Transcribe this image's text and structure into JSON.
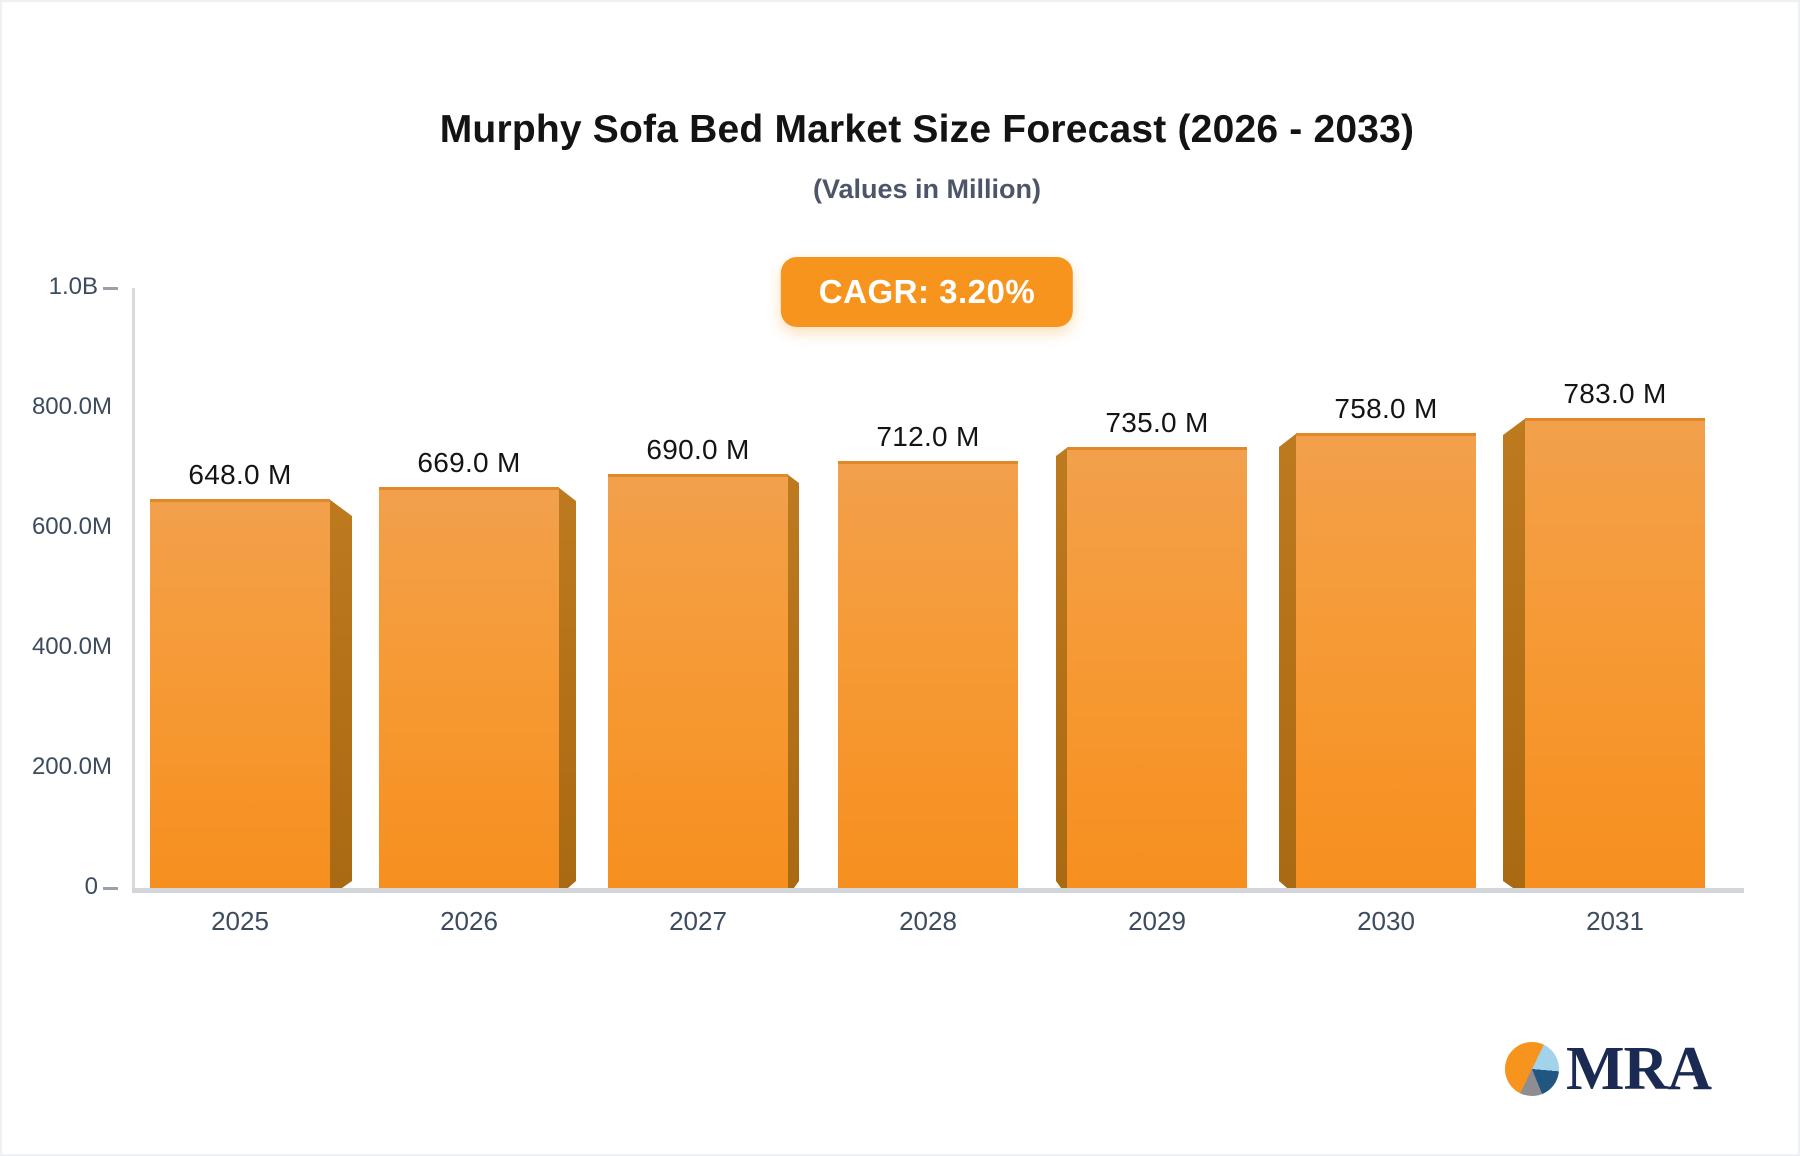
{
  "header": {
    "title": "Murphy Sofa Bed Market Size Forecast (2026 - 2033)",
    "subtitle": "(Values in Million)"
  },
  "badge": {
    "label": "CAGR: 3.20%",
    "color": "#f7941d"
  },
  "chart_data": {
    "type": "bar",
    "title": "Murphy Sofa Bed Market Size Forecast (2026 - 2033)",
    "subtitle": "(Values in Million)",
    "cagr": "3.20%",
    "categories": [
      "2025",
      "2026",
      "2027",
      "2028",
      "2029",
      "2030",
      "2031"
    ],
    "values": [
      648,
      669,
      690,
      712,
      735,
      758,
      783
    ],
    "value_labels": [
      "648.0 M",
      "669.0 M",
      "690.0 M",
      "712.0 M",
      "735.0 M",
      "758.0 M",
      "783.0 M"
    ],
    "unit": "M",
    "xlabel": "",
    "ylabel": "",
    "ylim": [
      0,
      1000
    ],
    "y_ticks": [
      {
        "label": "1.0B",
        "value": 1000,
        "dash": true
      },
      {
        "label": "800.0M",
        "value": 800,
        "dash": false
      },
      {
        "label": "600.0M",
        "value": 600,
        "dash": false
      },
      {
        "label": "400.0M",
        "value": 400,
        "dash": false
      },
      {
        "label": "200.0M",
        "value": 200,
        "dash": false
      },
      {
        "label": "0",
        "value": 0,
        "dash": true
      }
    ],
    "grid": false,
    "legend": false,
    "style": "3d-perspective-columns",
    "bar_colors": {
      "face_top": "#f2a04c",
      "face_bottom": "#f68f1f",
      "top_edge": "#e0882a",
      "side_top": "#bd7a1f",
      "side_bottom": "#a96a13"
    },
    "axis_color": "#d6d8dc",
    "label_color": "#3d4b5e",
    "value_label_color": "#141414"
  },
  "logo": {
    "text": "MRA",
    "pie_colors": [
      "#f7941d",
      "#a3d3ea",
      "#20567f",
      "#8d8d92"
    ]
  }
}
